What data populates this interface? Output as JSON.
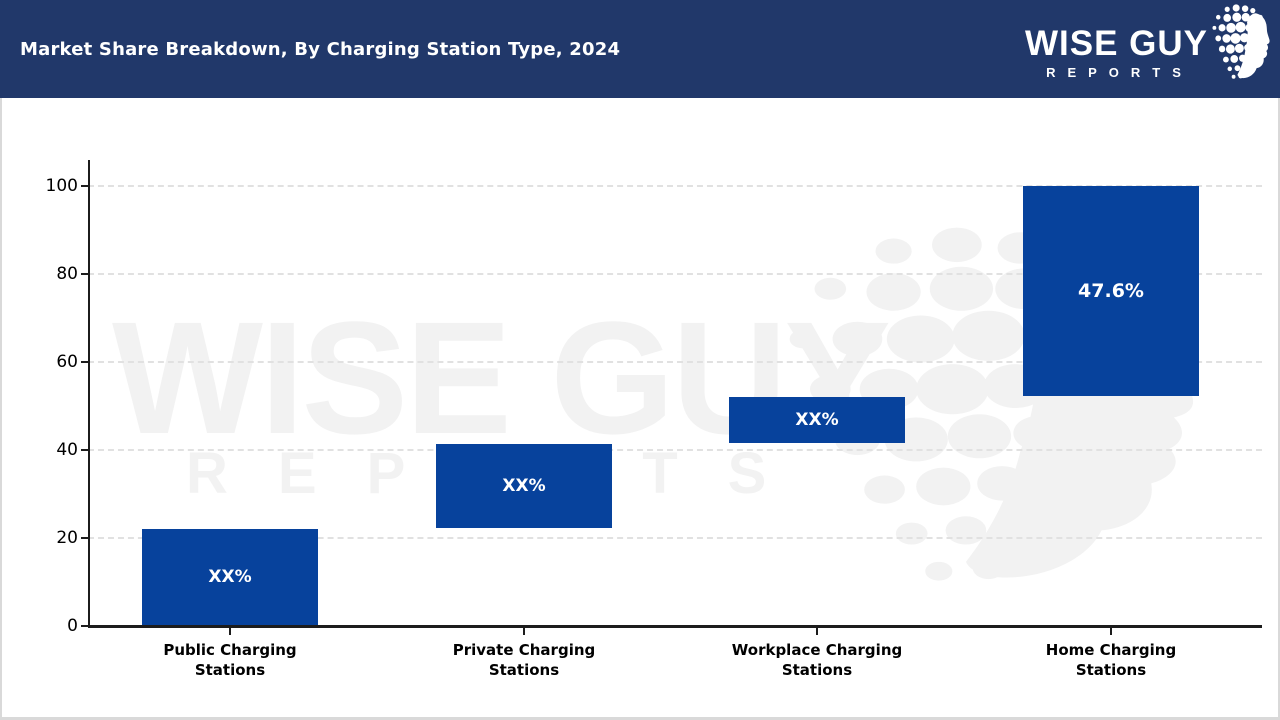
{
  "header": {
    "title": "Market Share Breakdown, By Charging Station Type, 2024",
    "bg_color": "#21386a",
    "logo": {
      "name_line": "WISE GUY",
      "sub_line": "REPORTS"
    }
  },
  "watermark": {
    "name_line": "WISE GUY",
    "sub_line": "REPORTS"
  },
  "chart_data": {
    "type": "bar",
    "subtype": "waterfall",
    "title": "Market Share Breakdown, By Charging Station Type, 2024",
    "categories": [
      "Public Charging\nStations",
      "Private Charging\nStations",
      "Workplace Charging\nStations",
      "Home Charging\nStations"
    ],
    "bars": [
      {
        "start": 0,
        "end": 22.1,
        "label": "XX%"
      },
      {
        "start": 22.3,
        "end": 41.4,
        "label": "XX%"
      },
      {
        "start": 41.7,
        "end": 52.2,
        "label": "XX%"
      },
      {
        "start": 52.4,
        "end": 100,
        "label": "47.6%"
      }
    ],
    "ylim": [
      0,
      106
    ],
    "yticks": [
      0,
      20,
      40,
      60,
      80,
      100
    ],
    "grid": "horizontal-dashed",
    "legend": null,
    "bar_color": "#07429c",
    "bar_label_color": "#ffffff",
    "axis_color": "#1c1c1c",
    "grid_color": "#e1e1e1",
    "watermark_color": "#f2f2f2"
  }
}
